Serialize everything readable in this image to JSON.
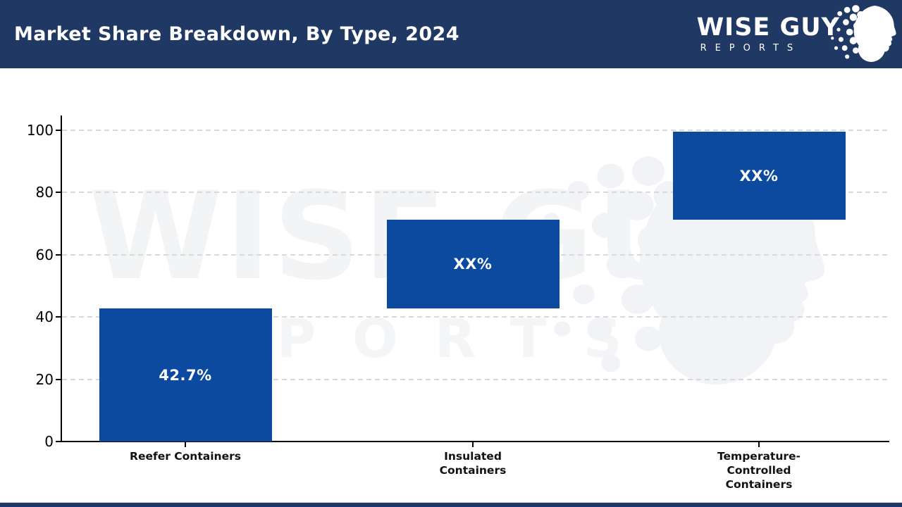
{
  "header": {
    "title": "Market Share Breakdown, By Type, 2024"
  },
  "logo": {
    "line1": "WISE GUY",
    "line2": "REPORTS",
    "face_icon": "dotted-head-profile"
  },
  "watermark": {
    "line1": "WISE GUY",
    "line2": "REPORTS",
    "face_icon": "dotted-head-profile"
  },
  "chart_data": {
    "type": "bar",
    "subtype": "waterfall",
    "title": "Market Share Breakdown, By Type, 2024",
    "categories": [
      "Reefer Containers",
      "Insulated\nContainers",
      "Temperature-\nControlled\nContainers"
    ],
    "bars": [
      {
        "category": "Reefer Containers",
        "start": 0,
        "end": 42.7,
        "label": "42.7%"
      },
      {
        "category": "Insulated Containers",
        "start": 42.7,
        "end": 71.3,
        "label": "XX%"
      },
      {
        "category": "Temperature-Controlled Containers",
        "start": 71.3,
        "end": 99.5,
        "label": "XX%"
      }
    ],
    "xlabel": "",
    "ylabel": "",
    "ylim": [
      0,
      100
    ],
    "yticks": [
      0,
      20,
      40,
      60,
      80,
      100
    ],
    "grid": "horizontal-dashed",
    "legend": "none",
    "bar_color": "#0b4a9e",
    "bar_label_color": "#ffffff"
  },
  "colors": {
    "header_bg": "#203864",
    "footer_bg": "#203864",
    "bar": "#0b4a9e",
    "grid": "#d9d9d9",
    "axis": "#000000",
    "tick_text": "#000000",
    "watermark": "#f2f4f6",
    "title_text": "#ffffff"
  }
}
